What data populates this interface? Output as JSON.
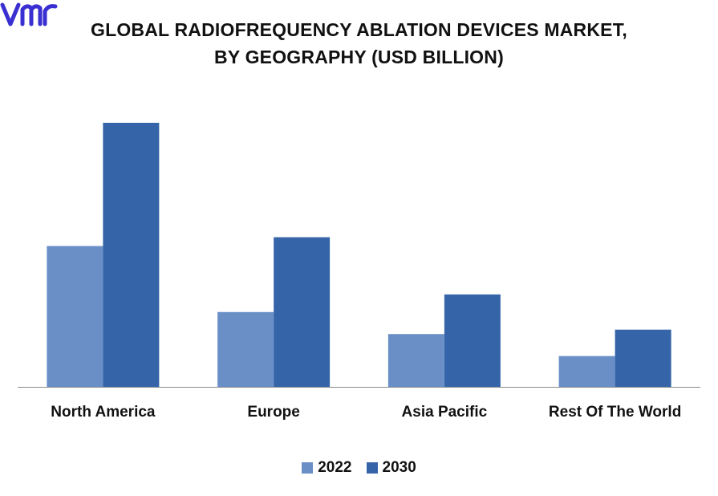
{
  "title_lines": [
    "GLOBAL RADIOFREQUENCY ABLATION DEVICES MARKET,",
    "BY GEOGRAPHY (USD BILLION)"
  ],
  "colors": {
    "series_2022": "#6A8FC7",
    "series_2030": "#3565A8",
    "axis": "#8C8C8C",
    "logo": "#3A2FD1"
  },
  "logo_icon": "vmr-logo-icon",
  "chart_data": {
    "type": "bar",
    "categories": [
      "North America",
      "Europe",
      "Asia Pacific",
      "Rest Of The World"
    ],
    "series": [
      {
        "name": "2022",
        "values": [
          3.2,
          1.7,
          1.2,
          0.7
        ]
      },
      {
        "name": "2030",
        "values": [
          6.0,
          3.4,
          2.1,
          1.3
        ]
      }
    ],
    "ylim": [
      0,
      6.0
    ],
    "grid": false,
    "legend_position": "bottom"
  }
}
